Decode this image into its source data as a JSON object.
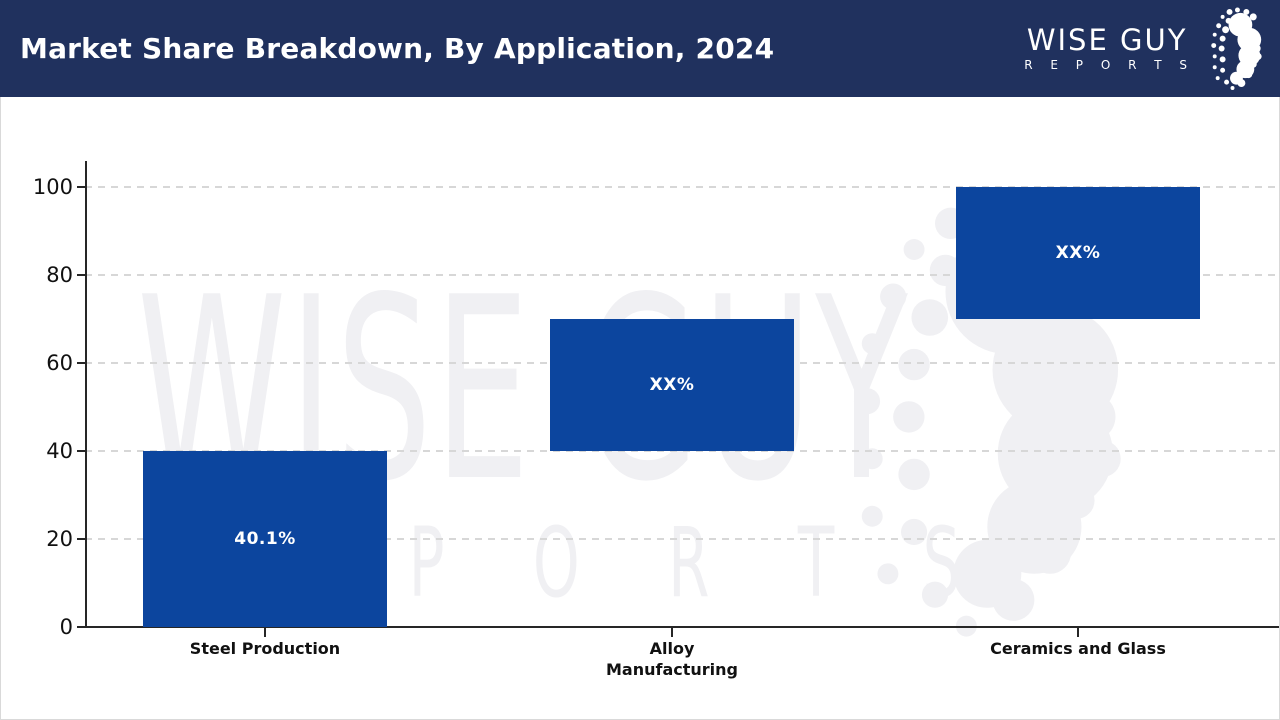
{
  "header": {
    "title": "Market Share Breakdown, By Application, 2024",
    "logo": {
      "name": "WISE GUY",
      "sub": "R E P O R T S"
    }
  },
  "watermark": {
    "line1": "WISE GUY",
    "line2": "R E P O R T S"
  },
  "chart_data": {
    "type": "bar",
    "variant": "stacked-step-waterfall",
    "title": "Market Share Breakdown, By Application, 2024",
    "categories": [
      "Steel Production",
      "Alloy\nManufacturing",
      "Ceramics and Glass"
    ],
    "bar_ranges": [
      [
        0,
        40.1
      ],
      [
        40.1,
        70
      ],
      [
        70,
        100
      ]
    ],
    "bar_labels": [
      "40.1%",
      "XX%",
      "XX%"
    ],
    "yticks": [
      0,
      20,
      40,
      60,
      80,
      100
    ],
    "ylim": [
      0,
      100
    ],
    "xlabel": "",
    "ylabel": "",
    "grid": "horizontal-dashed",
    "legend": "none",
    "colors": {
      "bar": "#0c459e",
      "bar_label": "#ffffff",
      "grid": "#d7d7d7",
      "axis": "#262626",
      "tick_label": "#111111",
      "header_bg": "#20315e",
      "watermark": "#f0f0f3"
    }
  }
}
